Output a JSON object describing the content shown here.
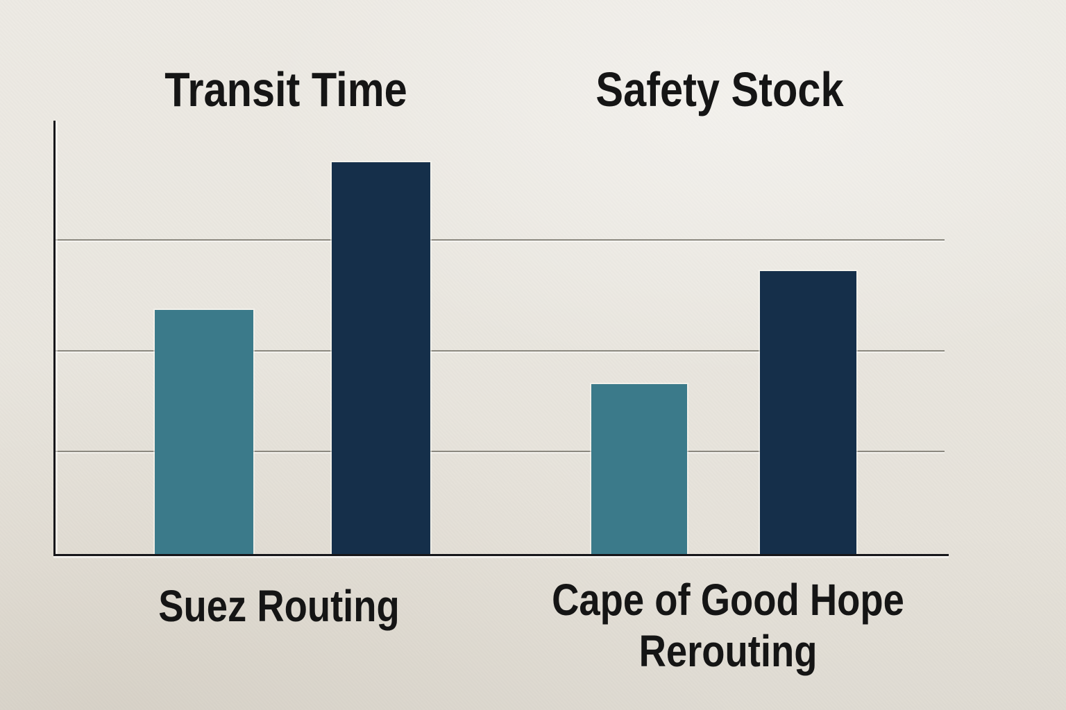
{
  "chart_data": {
    "type": "bar",
    "groups": [
      {
        "title": "Transit Time",
        "axis_label": "Suez Routing",
        "bars": [
          {
            "series": "teal",
            "value": 56
          },
          {
            "series": "navy",
            "value": 90
          }
        ]
      },
      {
        "title": "Safety Stock",
        "axis_label": "Cape of Good Hope Rerouting",
        "bars": [
          {
            "series": "teal",
            "value": 39
          },
          {
            "series": "navy",
            "value": 65
          }
        ]
      }
    ],
    "value_axis": {
      "min": 0,
      "max": 100,
      "gridline_values": [
        25,
        50,
        75
      ],
      "tick_labels_visible": false,
      "units": "relative (no numeric labels shown in image)"
    },
    "legend_visible": false,
    "colors": {
      "teal_bar": "#3b7a8a",
      "navy_bar": "#152f4a",
      "axis_line": "#16161a",
      "gridline": "#8b887f",
      "text": "#151515",
      "background": "#e9e6df"
    }
  }
}
